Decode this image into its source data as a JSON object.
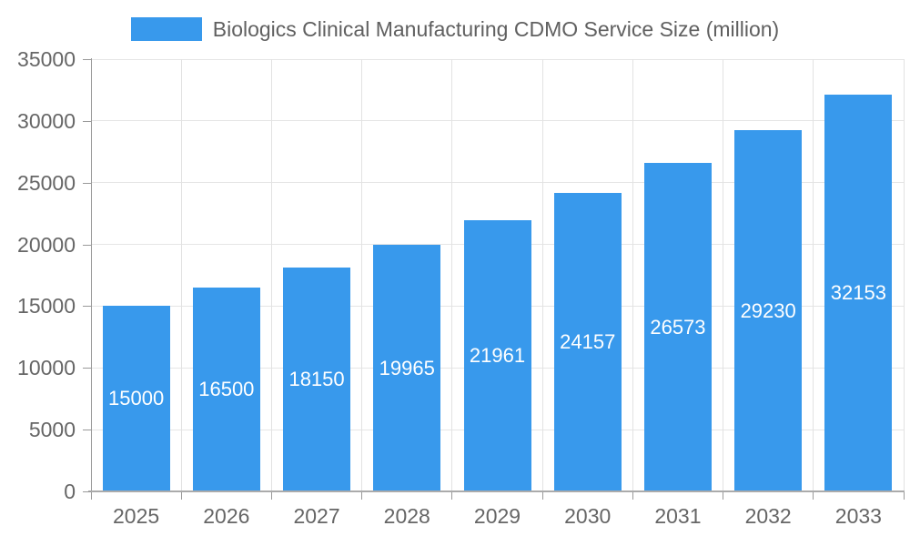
{
  "legend": {
    "swatch_color": "#3899ec"
  },
  "chart_data": {
    "type": "bar",
    "title": "Biologics Clinical Manufacturing CDMO Service Size (million)",
    "categories": [
      "2025",
      "2026",
      "2027",
      "2028",
      "2029",
      "2030",
      "2031",
      "2032",
      "2033"
    ],
    "values": [
      15000,
      16500,
      18150,
      19965,
      21961,
      24157,
      26573,
      29230,
      32153
    ],
    "xlabel": "",
    "ylabel": "",
    "ylim": [
      0,
      35000
    ],
    "yticks": [
      0,
      5000,
      10000,
      15000,
      20000,
      25000,
      30000,
      35000
    ],
    "grid": true,
    "legend_position": "top",
    "bar_color": "#3899ec",
    "value_label_color": "#ffffff",
    "axis_text_color": "#666666"
  }
}
